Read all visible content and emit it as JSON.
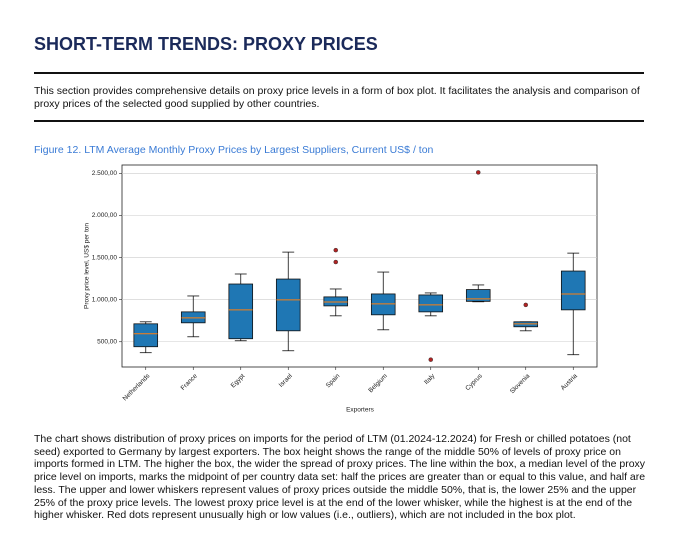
{
  "header": {
    "title": "SHORT-TERM TRENDS: PROXY PRICES"
  },
  "intro": "This section provides comprehensive details on proxy price levels in a form of box plot. It facilitates the analysis and comparison of proxy prices of the selected good supplied by other countries.",
  "chart_data": {
    "type": "box",
    "title": "Figure 12. LTM Average Monthly Proxy Prices by Largest Suppliers, Current US$ / ton",
    "x_label": "Exporters",
    "y_label": "Proxy price level, US$ per ton",
    "categories": [
      "Netherlands",
      "France",
      "Egypt",
      "Israel",
      "Spain",
      "Belgium",
      "Italy",
      "Cyprus",
      "Slovenia",
      "Austria"
    ],
    "whisker_low": [
      370,
      559,
      512,
      393,
      808,
      642,
      808,
      975,
      630,
      346
    ],
    "q1": [
      441,
      725,
      536,
      630,
      926,
      820,
      855,
      980,
      678,
      879
    ],
    "median": [
      595,
      784,
      879,
      997,
      973,
      950,
      938,
      1010,
      713,
      1068
    ],
    "q3": [
      713,
      855,
      1186,
      1245,
      1033,
      1068,
      1056,
      1120,
      737,
      1340
    ],
    "whisker_high": [
      737,
      1044,
      1305,
      1565,
      1127,
      1328,
      1080,
      1175,
      737,
      1553
    ],
    "outliers": [
      [],
      [],
      [],
      [],
      [
        1588,
        1447
      ],
      [],
      [
        287
      ],
      [
        2512
      ],
      [
        938
      ],
      []
    ],
    "color": "#1f77b4",
    "median_color": "#ff7f0e",
    "outlier_color": "#b22222",
    "ylim": [
      200,
      2600
    ],
    "yticks": [
      {
        "value": 500,
        "label": "500,00"
      },
      {
        "value": 1000,
        "label": "1.000,00"
      },
      {
        "value": 1500,
        "label": "1.500,00"
      },
      {
        "value": 2000,
        "label": "2.000,00"
      },
      {
        "value": 2500,
        "label": "2.500,00"
      }
    ],
    "grid": true
  },
  "description": "The chart shows distribution of proxy prices on imports for the period of LTM (01.2024-12.2024) for Fresh or chilled potatoes (not seed) exported to Germany by largest exporters. The box height shows the range of the middle 50% of levels of proxy price on imports formed in LTM. The higher the box, the wider the spread of proxy prices. The line within the box, a median level of the proxy price level on imports, marks the midpoint of per country data set: half the prices are greater than or equal to this value, and half are less. The upper and lower whiskers represent values of proxy prices outside the middle 50%, that is, the lower 25% and the upper 25% of the proxy price levels. The lowest proxy price level is at the end of the lower whisker, while the highest is at the end of the higher whisker. Red dots represent unusually high or low values (i.e., outliers), which are not included in the box plot."
}
